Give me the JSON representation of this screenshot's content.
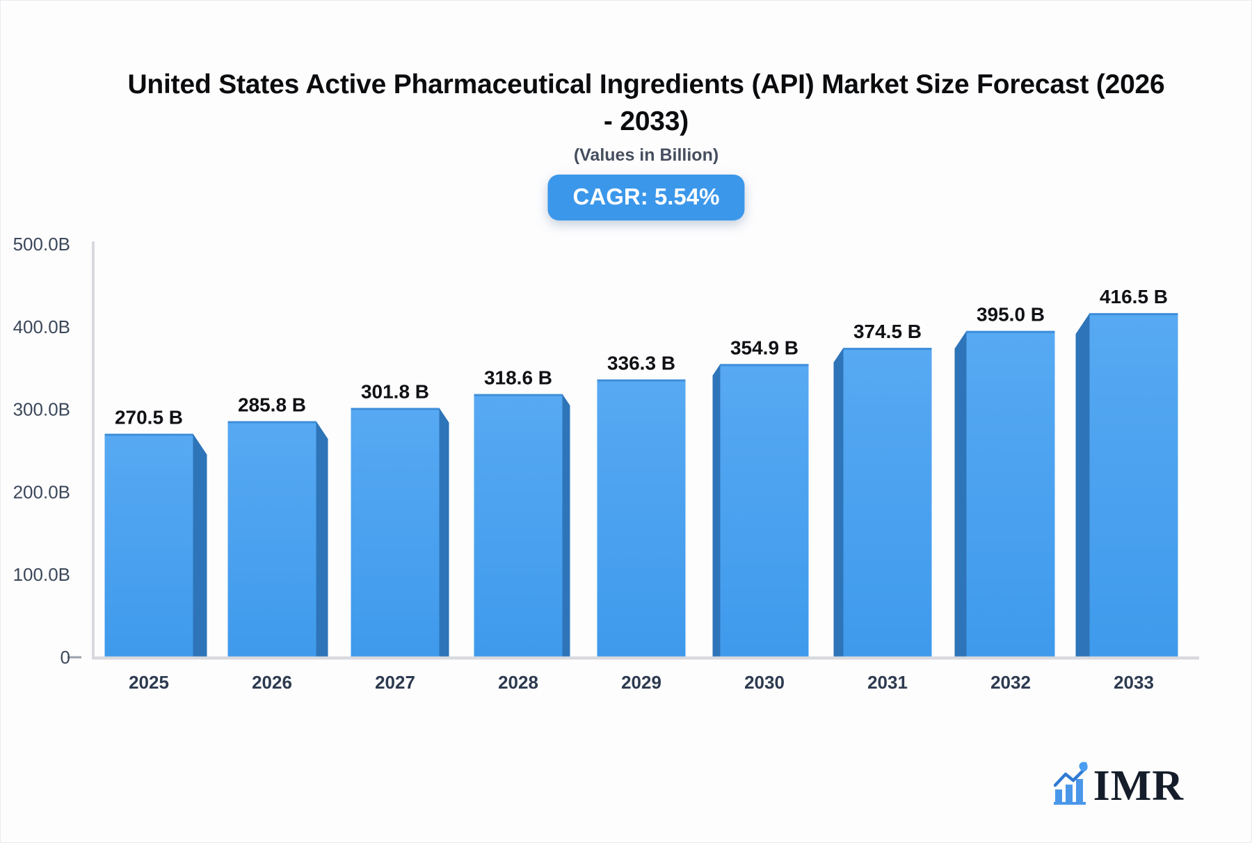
{
  "header": {
    "title_line1": "United States Active Pharmaceutical Ingredients (API) Market Size Forecast (2026",
    "title_line2": "- 2033)",
    "subtitle": "(Values in Billion)",
    "cagr_label": "CAGR: 5.54%"
  },
  "chart_data": {
    "type": "bar",
    "title": "United States Active Pharmaceutical Ingredients (API) Market Size Forecast (2026 - 2033)",
    "subtitle": "(Values in Billion)",
    "cagr": "CAGR: 5.54%",
    "categories": [
      "2025",
      "2026",
      "2027",
      "2028",
      "2029",
      "2030",
      "2031",
      "2032",
      "2033"
    ],
    "values": [
      270.5,
      285.8,
      301.8,
      318.6,
      336.3,
      354.9,
      374.5,
      395.0,
      416.5
    ],
    "bar_labels": [
      "270.5 B",
      "285.8 B",
      "301.8 B",
      "318.6 B",
      "336.3 B",
      "354.9 B",
      "374.5 B",
      "395.0 B",
      "416.5 B"
    ],
    "unit": "Billion",
    "xlabel": "",
    "ylabel": "",
    "ylim": [
      0,
      500
    ],
    "y_tick_values": [
      500,
      400,
      300,
      200,
      100,
      0
    ],
    "y_tick_labels": [
      "500.0B",
      "400.0B",
      "300.0B",
      "200.0B",
      "100.0B",
      "0"
    ],
    "grid": false,
    "legend": "none",
    "colors": {
      "bar_face_top": "#57a9f2",
      "bar_face_bottom": "#3f9aec",
      "bar_side": "#2e74b8",
      "bar_top_edge": "#3f8ed9",
      "axis_line": "#d8d9de",
      "zero_tick": "#9ba1ab",
      "y_tick_label": "#3b4758",
      "x_tick_label": "#2d3a4f",
      "value_label": "#101114",
      "badge_bg": "#3b97ea",
      "badge_text": "#ffffff"
    }
  },
  "logo": {
    "text": "IMR"
  }
}
